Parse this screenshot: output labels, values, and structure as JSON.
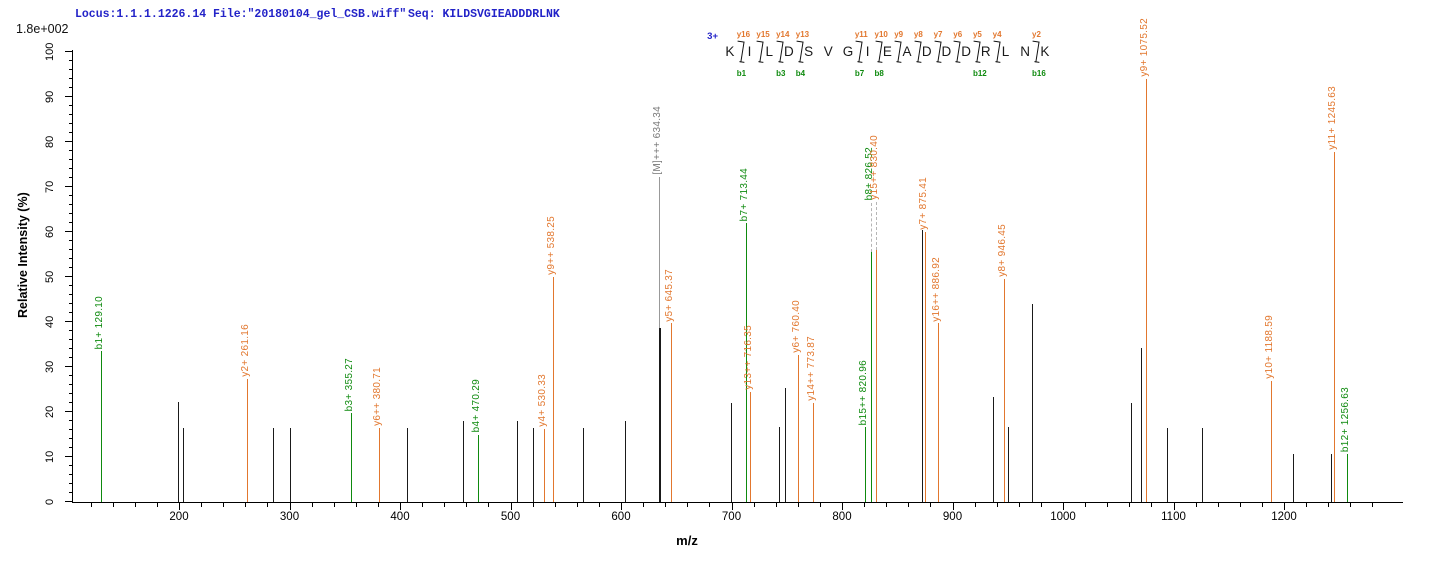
{
  "header": {
    "locus_file": "Locus:1.1.1.1226.14 File:\"20180104_gel_CSB.wiff\"",
    "seq": "Seq: KILDSVGIEADDDRLNK"
  },
  "scale_label": "1.8e+002",
  "charge_label": "3+",
  "colors": {
    "orange": "#e2772e",
    "green": "#0e8a0e",
    "black": "#1a1a1a",
    "gray": "#777777",
    "leader_gray": "#999999",
    "header_blue": "#2323c8"
  },
  "sequence": {
    "charge": "3+",
    "peptide": "KILDSVGIEADDDRLNK",
    "tokens": [
      {
        "aa": "K",
        "y": "y16",
        "b": "b1"
      },
      {
        "aa": "I",
        "y": "y15"
      },
      {
        "aa": "L",
        "y": "y14",
        "b": "b3"
      },
      {
        "aa": "D",
        "y": "y13",
        "b": "b4"
      },
      {
        "aa": "S"
      },
      {
        "aa": "V"
      },
      {
        "aa": "G",
        "y": "y11",
        "b": "b7"
      },
      {
        "aa": "I",
        "y": "y10",
        "b": "b8"
      },
      {
        "aa": "E",
        "y": "y9"
      },
      {
        "aa": "A",
        "y": "y8"
      },
      {
        "aa": "D",
        "y": "y7"
      },
      {
        "aa": "D",
        "y": "y6"
      },
      {
        "aa": "D",
        "y": "y5",
        "b": "b12"
      },
      {
        "aa": "R",
        "y": "y4"
      },
      {
        "aa": "L"
      },
      {
        "aa": "N",
        "y": "y2",
        "b": "b16"
      },
      {
        "aa": "K"
      }
    ]
  },
  "chart_data": {
    "type": "bar",
    "subtype": "mass-spectrum-stick-plot",
    "title": "",
    "xlabel": "m/z",
    "ylabel": "Relative  Intensity  (%)",
    "y_scale_note": "1.8e+002",
    "xlim": [
      103,
      1307
    ],
    "ylim": [
      0,
      100
    ],
    "x_major_tick_step": 100,
    "x_minor_tick_step": 20,
    "x_labeled_ticks": [
      200,
      300,
      400,
      500,
      600,
      700,
      800,
      900,
      1000,
      1100,
      1200
    ],
    "y_major_tick_step": 10,
    "y_minor_tick_step": 2,
    "y_labeled_ticks": [
      0,
      10,
      20,
      30,
      40,
      50,
      60,
      70,
      80,
      90,
      100
    ],
    "grid": false,
    "legend": "none",
    "peaks": [
      {
        "mz": 129.1,
        "h": 33.5,
        "c": "green",
        "label": "b1+ 129.10"
      },
      {
        "mz": 199.0,
        "h": 22.3,
        "c": "black"
      },
      {
        "mz": 203.5,
        "h": 16.5,
        "c": "black"
      },
      {
        "mz": 261.16,
        "h": 27.3,
        "c": "orange",
        "label": "y2+ 261.16"
      },
      {
        "mz": 285.0,
        "h": 16.5,
        "c": "black"
      },
      {
        "mz": 300.5,
        "h": 16.5,
        "c": "black"
      },
      {
        "mz": 355.27,
        "h": 19.8,
        "c": "green",
        "label": "b3+ 355.27"
      },
      {
        "mz": 380.71,
        "h": 16.5,
        "c": "orange",
        "label": "y6++ 380.71"
      },
      {
        "mz": 406.5,
        "h": 16.5,
        "c": "black"
      },
      {
        "mz": 457.0,
        "h": 18.0,
        "c": "black"
      },
      {
        "mz": 470.29,
        "h": 15.0,
        "c": "green",
        "label": "b4+ 470.29"
      },
      {
        "mz": 506.0,
        "h": 18.0,
        "c": "black"
      },
      {
        "mz": 520.0,
        "h": 16.5,
        "c": "black"
      },
      {
        "mz": 530.33,
        "h": 16.3,
        "c": "orange",
        "label": "y4+ 530.33"
      },
      {
        "mz": 538.25,
        "h": 50.0,
        "c": "orange",
        "label": "y9++ 538.25"
      },
      {
        "mz": 566.0,
        "h": 16.4,
        "c": "black"
      },
      {
        "mz": 604.0,
        "h": 18.0,
        "c": "black"
      },
      {
        "mz": 634.34,
        "h": 38.7,
        "c": "black",
        "w": 2,
        "label": "[M]+++ 634.34",
        "lc": "gray",
        "leader": {
          "to": 72.3,
          "dash": false
        }
      },
      {
        "mz": 645.37,
        "h": 39.7,
        "c": "orange",
        "label": "y5+ 645.37"
      },
      {
        "mz": 699.5,
        "h": 22.0,
        "c": "black"
      },
      {
        "mz": 713.44,
        "h": 62.0,
        "c": "green",
        "label": "b7+ 713.44"
      },
      {
        "mz": 716.35,
        "h": 24.5,
        "c": "orange",
        "label": "y13++ 716.35"
      },
      {
        "mz": 743.3,
        "h": 16.7,
        "c": "black"
      },
      {
        "mz": 748.0,
        "h": 25.3,
        "c": "black"
      },
      {
        "mz": 760.4,
        "h": 32.7,
        "c": "orange",
        "label": "y6+ 760.40"
      },
      {
        "mz": 773.87,
        "h": 22.0,
        "c": "orange",
        "label": "y14++ 773.87"
      },
      {
        "mz": 820.96,
        "h": 16.7,
        "c": "green",
        "label": "b15++ 820.96"
      },
      {
        "mz": 826.52,
        "h": 55.5,
        "c": "green",
        "label": "b8+ 826.52",
        "leader": {
          "to": 66.5,
          "dash": true
        }
      },
      {
        "mz": 830.4,
        "h": 56.0,
        "c": "orange",
        "label": "y15++ 830.40",
        "leader": {
          "to": 66.7,
          "dash": true
        }
      },
      {
        "mz": 872.0,
        "h": 60.4,
        "c": "black"
      },
      {
        "mz": 875.41,
        "h": 60.0,
        "c": "orange",
        "label": "y7+ 875.41"
      },
      {
        "mz": 886.92,
        "h": 39.7,
        "c": "orange",
        "label": "y16++ 886.92"
      },
      {
        "mz": 937.0,
        "h": 23.3,
        "c": "black"
      },
      {
        "mz": 946.45,
        "h": 49.6,
        "c": "orange",
        "label": "y8+ 946.45"
      },
      {
        "mz": 950.0,
        "h": 16.7,
        "c": "black"
      },
      {
        "mz": 971.5,
        "h": 44.0,
        "c": "black"
      },
      {
        "mz": 1061.3,
        "h": 21.9,
        "c": "black"
      },
      {
        "mz": 1071.0,
        "h": 34.2,
        "c": "black"
      },
      {
        "mz": 1075.52,
        "h": 94.0,
        "c": "orange",
        "label": "y9+ 1075.52"
      },
      {
        "mz": 1093.8,
        "h": 16.4,
        "c": "black"
      },
      {
        "mz": 1125.5,
        "h": 16.4,
        "c": "black"
      },
      {
        "mz": 1188.59,
        "h": 27.0,
        "c": "orange",
        "label": "y10+ 1188.59"
      },
      {
        "mz": 1208.0,
        "h": 10.7,
        "c": "black"
      },
      {
        "mz": 1242.6,
        "h": 10.7,
        "c": "black"
      },
      {
        "mz": 1245.63,
        "h": 77.8,
        "c": "orange",
        "label": "y11+ 1245.63"
      },
      {
        "mz": 1256.63,
        "h": 10.7,
        "c": "green",
        "label": "b12+ 1256.63"
      }
    ]
  }
}
